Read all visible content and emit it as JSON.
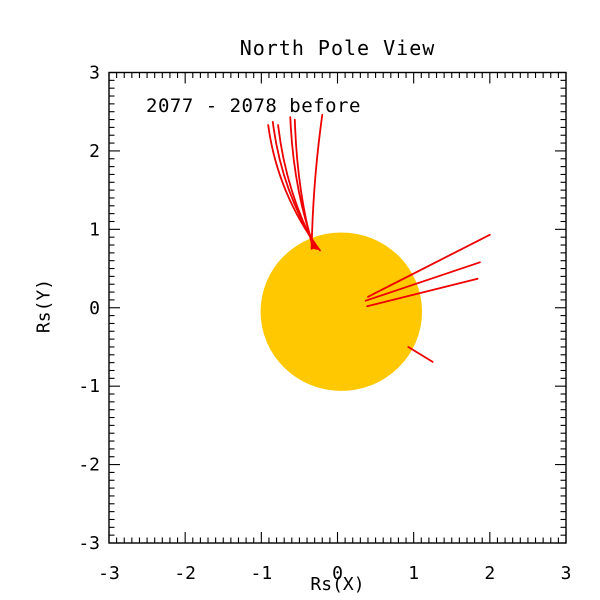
{
  "chart_data": {
    "type": "line",
    "title": "North Pole View",
    "xlabel": "Rs(X)",
    "ylabel": "Rs(Y)",
    "xlim": [
      -3,
      3
    ],
    "ylim": [
      -3,
      3
    ],
    "xtick_labels": [
      "-3",
      "-2",
      "-1",
      "0",
      "1",
      "2",
      "3"
    ],
    "ytick_labels": [
      "-3",
      "-2",
      "-1",
      "0",
      "1",
      "2",
      "3"
    ],
    "minor_tick_interval": 0.1,
    "grid": false,
    "legend": null,
    "background_color": "#ffffff",
    "axis_color": "#000000",
    "line_color": "#ee0000",
    "annotation": {
      "text": "2077 - 2078 before",
      "x": -2.52,
      "y": 2.6
    },
    "sun": {
      "cx": 0.05,
      "cy": -0.05,
      "rx": 1.06,
      "ry": 1.01,
      "color": "#ffc800"
    },
    "series": [
      {
        "name": "fieldline-north-1",
        "type": "quad",
        "points": [
          [
            -0.91,
            2.33
          ],
          [
            -0.79,
            1.46
          ],
          [
            -0.23,
            0.73
          ]
        ]
      },
      {
        "name": "fieldline-north-2",
        "type": "quad",
        "points": [
          [
            -0.85,
            2.37
          ],
          [
            -0.74,
            1.5
          ],
          [
            -0.26,
            0.75
          ]
        ]
      },
      {
        "name": "fieldline-north-3",
        "type": "quad",
        "points": [
          [
            -0.78,
            2.33
          ],
          [
            -0.68,
            1.48
          ],
          [
            -0.28,
            0.75
          ]
        ]
      },
      {
        "name": "fieldline-north-4",
        "type": "quad",
        "points": [
          [
            -0.62,
            2.43
          ],
          [
            -0.58,
            1.5
          ],
          [
            -0.3,
            0.76
          ]
        ]
      },
      {
        "name": "fieldline-north-5",
        "type": "quad",
        "points": [
          [
            -0.56,
            2.4
          ],
          [
            -0.53,
            1.48
          ],
          [
            -0.32,
            0.76
          ]
        ]
      },
      {
        "name": "fieldline-north-6",
        "type": "quad",
        "points": [
          [
            -0.2,
            2.46
          ],
          [
            -0.32,
            1.63
          ],
          [
            -0.34,
            0.75
          ]
        ]
      },
      {
        "name": "fieldline-east-1",
        "type": "line",
        "points": [
          [
            0.4,
            0.14
          ],
          [
            2.0,
            0.93
          ]
        ]
      },
      {
        "name": "fieldline-east-2",
        "type": "line",
        "points": [
          [
            0.37,
            0.09
          ],
          [
            1.87,
            0.58
          ]
        ]
      },
      {
        "name": "fieldline-east-3",
        "type": "line",
        "points": [
          [
            0.39,
            0.02
          ],
          [
            1.84,
            0.37
          ]
        ]
      },
      {
        "name": "fieldline-southeast-1",
        "type": "line",
        "points": [
          [
            0.93,
            -0.5
          ],
          [
            1.25,
            -0.69
          ]
        ]
      }
    ]
  }
}
